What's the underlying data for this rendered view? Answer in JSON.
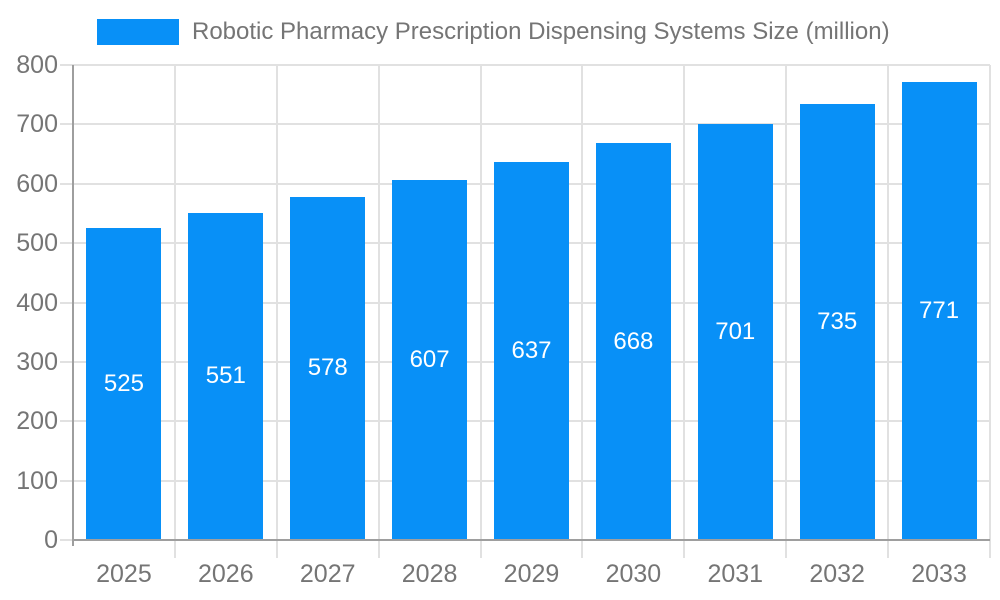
{
  "legend": {
    "series_label": "Robotic Pharmacy Prescription Dispensing Systems Size (million)"
  },
  "chart_data": {
    "type": "bar",
    "title": "Robotic Pharmacy Prescription Dispensing Systems Size (million)",
    "categories": [
      "2025",
      "2026",
      "2027",
      "2028",
      "2029",
      "2030",
      "2031",
      "2032",
      "2033"
    ],
    "series": [
      {
        "name": "Robotic Pharmacy Prescription Dispensing Systems Size (million)",
        "values": [
          525,
          551,
          578,
          607,
          637,
          668,
          701,
          735,
          771
        ]
      }
    ],
    "bar_value_labels": [
      "525",
      "551",
      "578",
      "607",
      "637",
      "668",
      "701",
      "735",
      "771"
    ],
    "xlabel": "",
    "ylabel": "",
    "ylim": [
      0,
      800
    ],
    "y_tick_step": 100,
    "y_tick_labels": [
      "0",
      "100",
      "200",
      "300",
      "400",
      "500",
      "600",
      "700",
      "800"
    ],
    "grid": true,
    "legend_position": "top-left",
    "bar_labels_position": "inside-center",
    "colors": {
      "bar": "#0890F7",
      "bar_label": "#FFFFFF",
      "axis_text": "#757575",
      "title_text": "#757575",
      "gridline": "#E1E1E1",
      "axis_line": "#9E9E9E",
      "background": "#FFFFFF"
    }
  }
}
